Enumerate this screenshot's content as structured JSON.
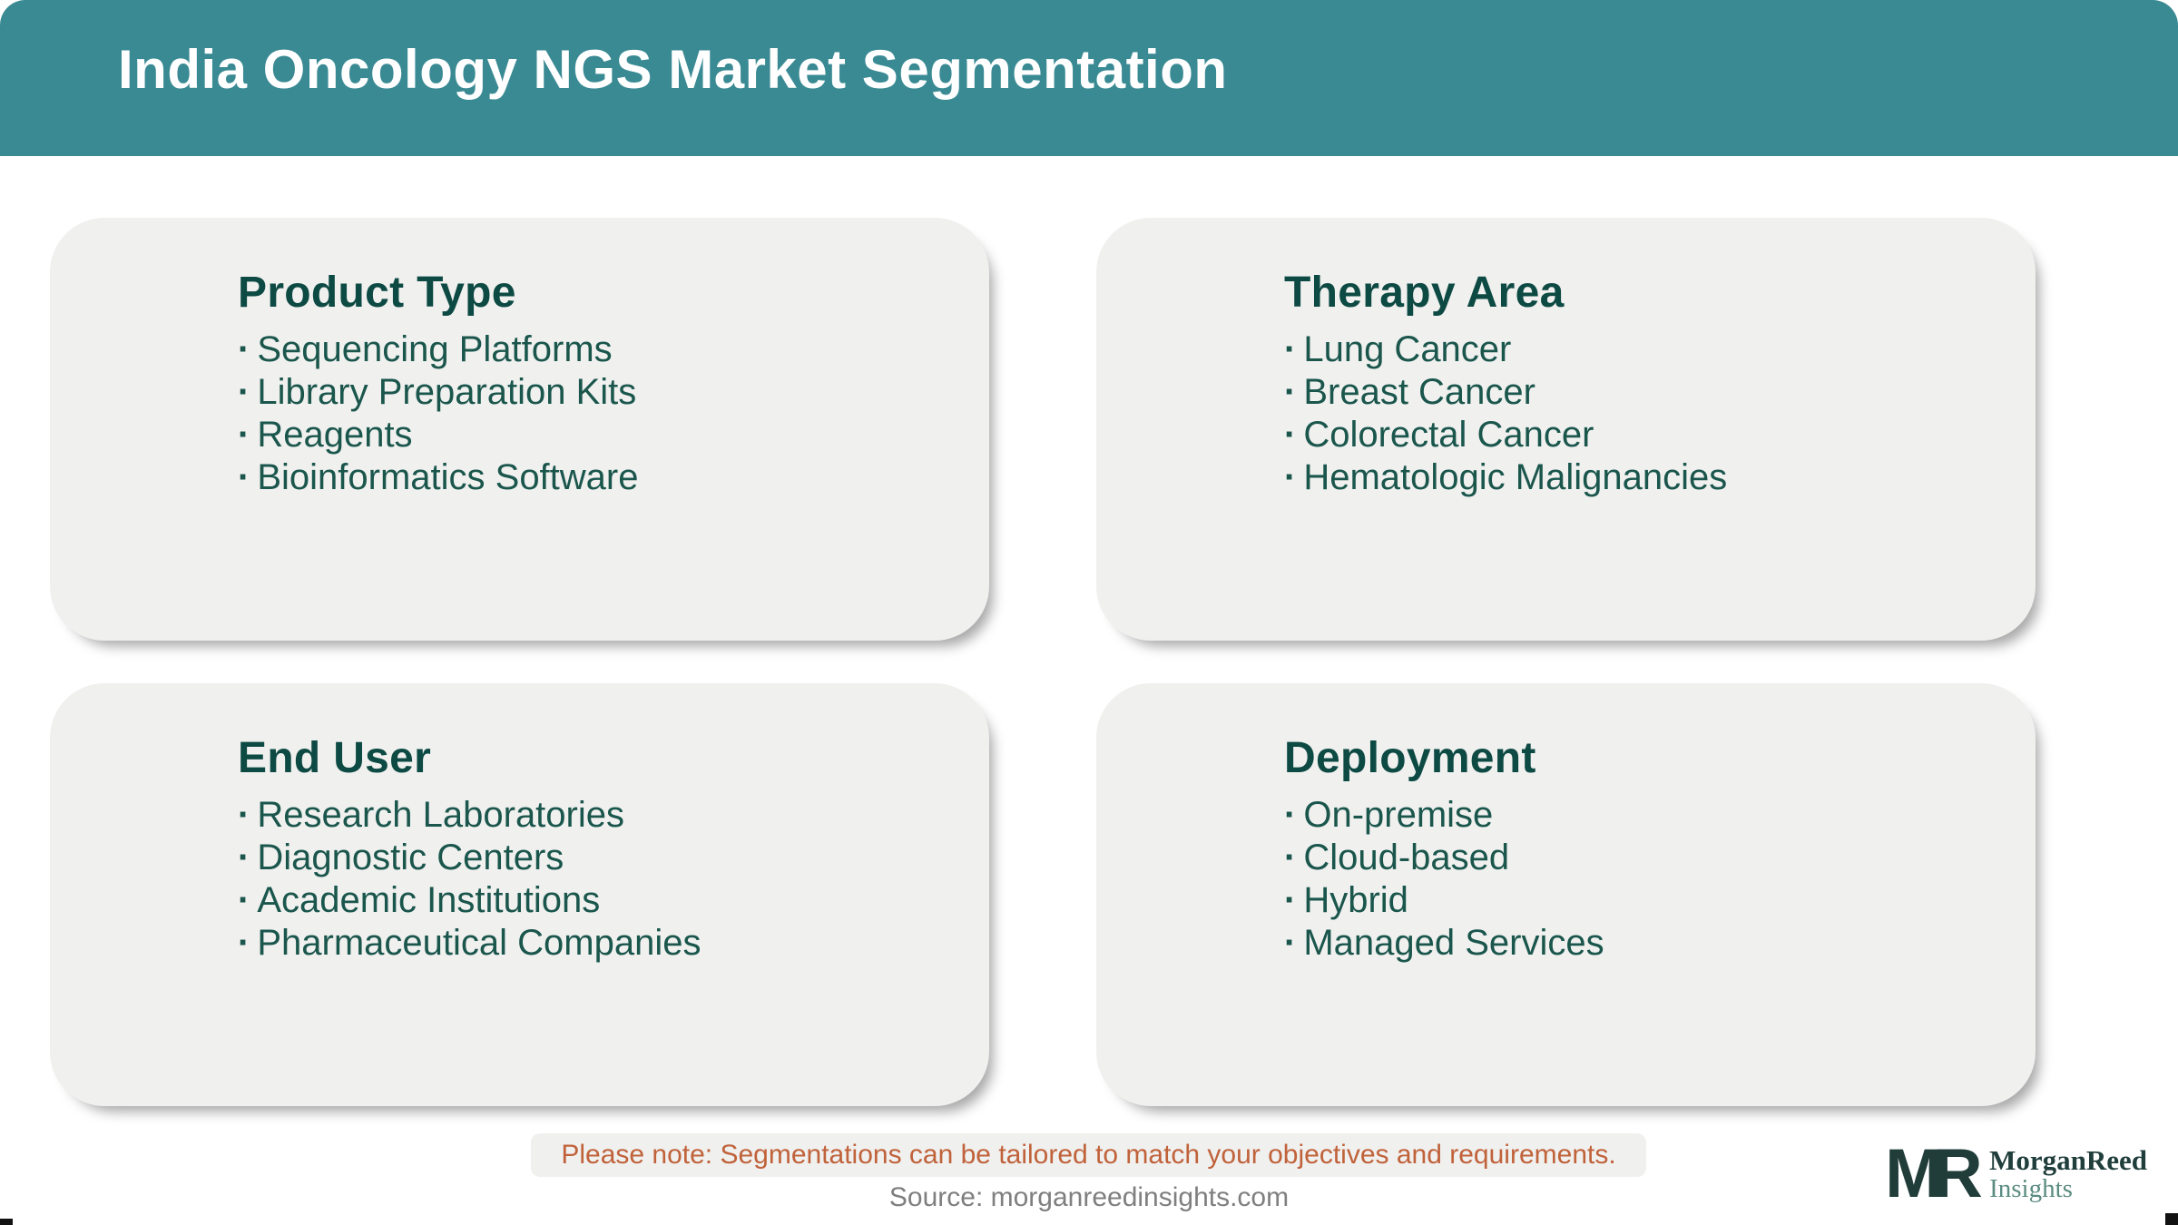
{
  "header": {
    "title": "India Oncology NGS Market Segmentation"
  },
  "cards": [
    {
      "title": "Product Type",
      "items": [
        "Sequencing Platforms",
        "Library Preparation Kits",
        "Reagents",
        "Bioinformatics Software"
      ]
    },
    {
      "title": "Therapy Area",
      "items": [
        "Lung Cancer",
        "Breast Cancer",
        "Colorectal Cancer",
        "Hematologic Malignancies"
      ]
    },
    {
      "title": "End User",
      "items": [
        "Research Laboratories",
        "Diagnostic Centers",
        "Academic Institutions",
        "Pharmaceutical Companies"
      ]
    },
    {
      "title": "Deployment",
      "items": [
        "On-premise",
        "Cloud-based",
        "Hybrid",
        "Managed Services"
      ]
    }
  ],
  "lists": {
    "bullet": "·"
  },
  "footer": {
    "note": "Please note: Segmentations can be tailored to match your objectives and requirements.",
    "source": "Source: morganreedinsights.com"
  },
  "logo": {
    "monogram": "MR",
    "name_bold": "Morgan",
    "name_regular": "Reed",
    "tagline": "Insights"
  },
  "colors": {
    "header_teal": "#3a8a94",
    "heading_green": "#0d4a43",
    "item_green": "#1a564c",
    "note_orange": "#c0623a",
    "card_bg": "#f0f0ef",
    "source_gray": "#7f7f7f",
    "logo_dark": "#213d3a",
    "logo_teal": "#5b8c81"
  }
}
